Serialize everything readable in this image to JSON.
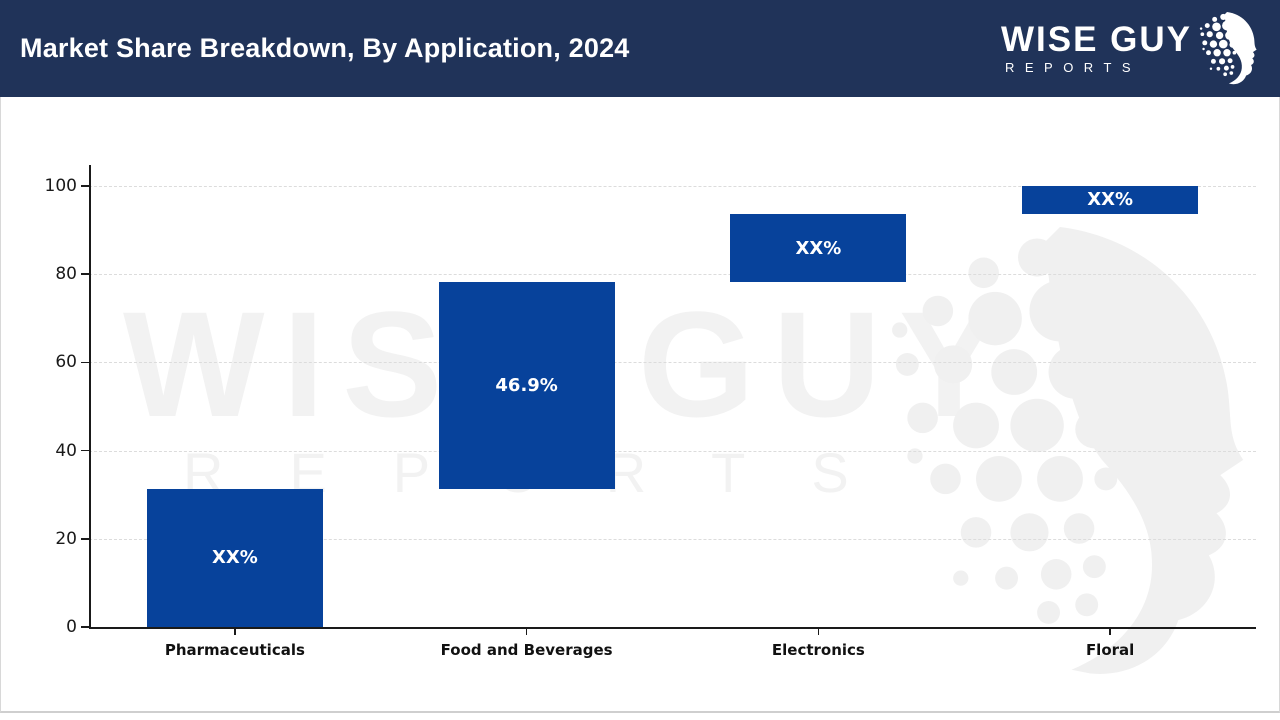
{
  "header": {
    "title": "Market Share Breakdown, By Application, 2024",
    "logo": {
      "brand": "WISE GUY",
      "sub": "REPORTS"
    }
  },
  "watermark": {
    "brand": "WISE GUY",
    "sub": "REPORTS"
  },
  "colors": {
    "header_bg": "#203359",
    "bar": "#07429B",
    "bar_label": "#ffffff",
    "axis": "#1a1a1a",
    "grid": "#dcdcdc",
    "watermark": "#f2f2f2",
    "frame_border": "#d8d8d8"
  },
  "chart_data": {
    "type": "bar",
    "subtype": "waterfall",
    "title": "Market Share Breakdown, By Application, 2024",
    "categories": [
      "Pharmaceuticals",
      "Food and Beverages",
      "Electronics",
      "Floral"
    ],
    "segments": [
      {
        "category": "Pharmaceuticals",
        "start": 0,
        "end": 31.3,
        "label": "XX%"
      },
      {
        "category": "Food and Beverages",
        "start": 31.3,
        "end": 78.2,
        "label": "46.9%"
      },
      {
        "category": "Electronics",
        "start": 78.2,
        "end": 93.6,
        "label": "XX%"
      },
      {
        "category": "Floral",
        "start": 93.7,
        "end": 100,
        "label": "XX%"
      }
    ],
    "y_ticks": [
      0,
      20,
      40,
      60,
      80,
      100
    ],
    "ylim": [
      0,
      105
    ],
    "xlabel": "",
    "ylabel": "",
    "grid": "horizontal-dashed",
    "legend": "none"
  }
}
